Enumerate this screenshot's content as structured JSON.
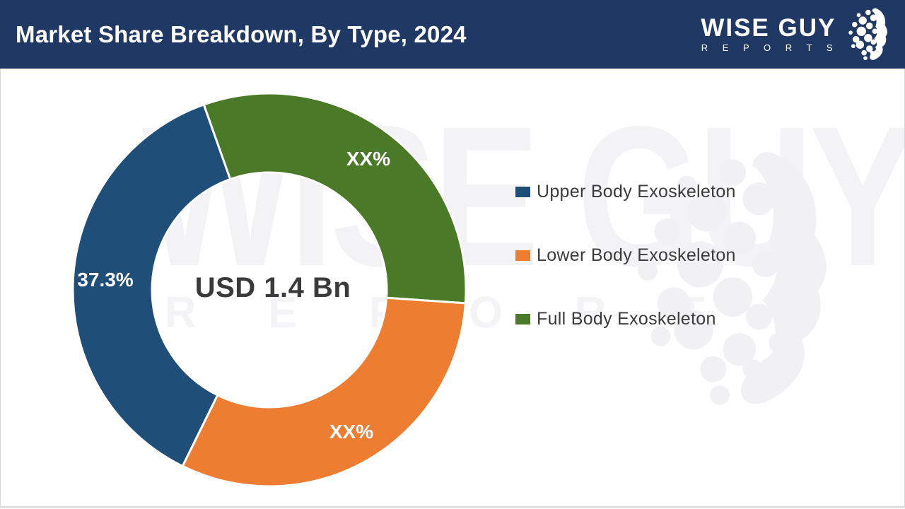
{
  "header": {
    "title": "Market Share Breakdown, By Type, 2024",
    "logo": {
      "line1": "WISE GUY",
      "line2": "R E P O R T S"
    }
  },
  "watermark": {
    "line1": "WISE GUY",
    "line2": "R E P O R T S"
  },
  "chart_data": {
    "type": "donut",
    "title": "Market Share Breakdown, By Type, 2024",
    "center_label": "USD 1.4 Bn",
    "start_angle_deg": -19.5,
    "legend_position": "right",
    "segments": [
      {
        "name": "Full Body Exoskeleton",
        "label": "XX%",
        "pct_est": 31.5,
        "color": "#4A7A28"
      },
      {
        "name": "Lower Body Exoskeleton",
        "label": "XX%",
        "pct_est": 31.2,
        "color": "#ED7D31"
      },
      {
        "name": "Upper Body Exoskeleton",
        "label": "37.3%",
        "pct_est": 37.3,
        "color": "#1F4E79"
      }
    ],
    "legend": [
      {
        "label": "Upper Body Exoskeleton",
        "color": "#1F4E79"
      },
      {
        "label": "Lower Body Exoskeleton",
        "color": "#ED7D31"
      },
      {
        "label": "Full Body Exoskeleton",
        "color": "#4A7A28"
      }
    ]
  },
  "colors": {
    "header_bg": "#1F3864",
    "card_border": "#d8d8d8",
    "slice_label_text": "#ffffff",
    "center_label_text": "#3a3a3a",
    "legend_text": "#3b3b3b",
    "watermark": "#f3f3f5"
  }
}
